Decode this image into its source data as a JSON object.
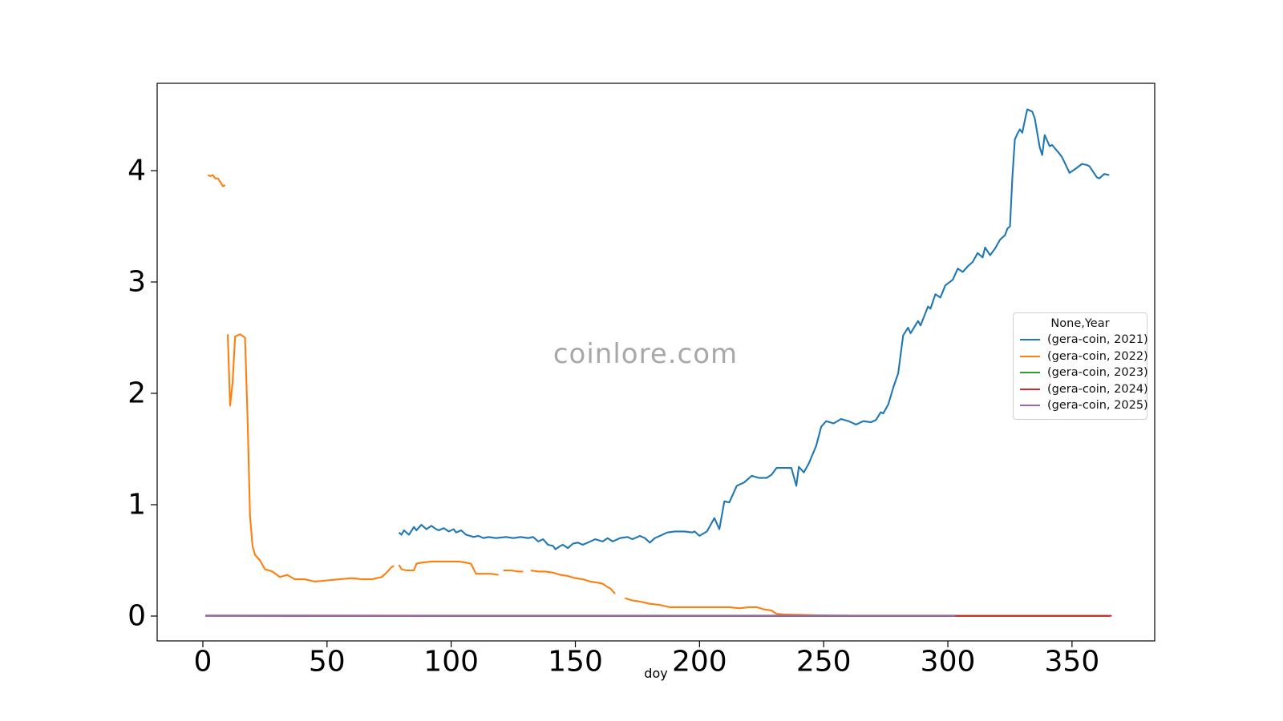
{
  "chart_data": {
    "type": "line",
    "title": "",
    "xlabel": "doy",
    "ylabel": "",
    "watermark": "coinlore.com",
    "xlim": [
      -18.4,
      383.3
    ],
    "ylim": [
      -0.223,
      4.784
    ],
    "xticks": [
      0,
      50,
      100,
      150,
      200,
      250,
      300,
      350
    ],
    "yticks": [
      0,
      1,
      2,
      3,
      4
    ],
    "grid": false,
    "axis_color": "#000000",
    "background_color": "#ffffff",
    "watermark_color": "#a8a8a8",
    "legend": {
      "title": "None,Year",
      "position": "center-right",
      "entries": [
        {
          "label": "(gera-coin, 2021)",
          "color": "#1f77b4"
        },
        {
          "label": "(gera-coin, 2022)",
          "color": "#ff7f0e"
        },
        {
          "label": "(gera-coin, 2023)",
          "color": "#2ca02c"
        },
        {
          "label": "(gera-coin, 2024)",
          "color": "#d62728"
        },
        {
          "label": "(gera-coin, 2025)",
          "color": "#9467bd"
        }
      ]
    },
    "series": [
      {
        "name": "(gera-coin, 2021)",
        "year": 2021,
        "color": "#1f77b4",
        "segments": [
          [
            [
              79,
              0.75
            ],
            [
              80,
              0.73
            ],
            [
              81,
              0.77
            ],
            [
              83,
              0.73
            ],
            [
              85,
              0.8
            ],
            [
              86,
              0.77
            ],
            [
              88,
              0.82
            ],
            [
              90,
              0.78
            ],
            [
              92,
              0.81
            ],
            [
              94,
              0.78
            ],
            [
              95,
              0.77
            ],
            [
              97,
              0.79
            ],
            [
              99,
              0.76
            ],
            [
              101,
              0.78
            ],
            [
              102,
              0.75
            ],
            [
              104,
              0.77
            ],
            [
              106,
              0.73
            ],
            [
              109,
              0.71
            ],
            [
              111,
              0.72
            ],
            [
              113,
              0.7
            ],
            [
              115,
              0.71
            ],
            [
              118,
              0.7
            ],
            [
              122,
              0.71
            ],
            [
              125,
              0.7
            ],
            [
              128,
              0.71
            ],
            [
              131,
              0.7
            ],
            [
              133,
              0.71
            ],
            [
              135,
              0.67
            ],
            [
              137,
              0.69
            ],
            [
              139,
              0.64
            ],
            [
              141,
              0.63
            ],
            [
              142,
              0.6
            ],
            [
              144,
              0.63
            ],
            [
              145,
              0.64
            ],
            [
              147,
              0.61
            ],
            [
              149,
              0.65
            ],
            [
              151,
              0.66
            ],
            [
              153,
              0.64
            ],
            [
              155,
              0.66
            ],
            [
              158,
              0.69
            ],
            [
              161,
              0.67
            ],
            [
              163,
              0.7
            ],
            [
              165,
              0.67
            ],
            [
              168,
              0.7
            ],
            [
              171,
              0.71
            ],
            [
              173,
              0.69
            ],
            [
              176,
              0.72
            ],
            [
              178,
              0.7
            ],
            [
              180,
              0.66
            ],
            [
              182,
              0.7
            ],
            [
              184,
              0.72
            ],
            [
              187,
              0.75
            ],
            [
              190,
              0.76
            ],
            [
              194,
              0.76
            ],
            [
              197,
              0.75
            ],
            [
              198,
              0.76
            ],
            [
              200,
              0.72
            ],
            [
              203,
              0.76
            ],
            [
              205,
              0.84
            ],
            [
              206,
              0.88
            ],
            [
              208,
              0.78
            ],
            [
              210,
              1.03
            ],
            [
              212,
              1.02
            ],
            [
              215,
              1.17
            ],
            [
              218,
              1.2
            ],
            [
              221,
              1.26
            ],
            [
              224,
              1.24
            ],
            [
              227,
              1.24
            ],
            [
              229,
              1.27
            ],
            [
              231,
              1.33
            ],
            [
              234,
              1.33
            ],
            [
              237,
              1.33
            ],
            [
              239,
              1.17
            ],
            [
              240,
              1.34
            ],
            [
              242,
              1.29
            ],
            [
              244,
              1.37
            ],
            [
              247,
              1.53
            ],
            [
              249,
              1.7
            ],
            [
              251,
              1.75
            ],
            [
              254,
              1.73
            ],
            [
              257,
              1.77
            ],
            [
              260,
              1.75
            ],
            [
              263,
              1.72
            ],
            [
              266,
              1.75
            ],
            [
              269,
              1.74
            ],
            [
              271,
              1.76
            ],
            [
              273,
              1.83
            ],
            [
              274,
              1.82
            ],
            [
              276,
              1.9
            ],
            [
              278,
              2.05
            ],
            [
              280,
              2.18
            ],
            [
              282,
              2.52
            ],
            [
              284,
              2.59
            ],
            [
              285,
              2.54
            ],
            [
              288,
              2.65
            ],
            [
              289,
              2.61
            ],
            [
              292,
              2.78
            ],
            [
              293,
              2.76
            ],
            [
              295,
              2.89
            ],
            [
              297,
              2.86
            ],
            [
              299,
              2.97
            ],
            [
              302,
              3.02
            ],
            [
              304,
              3.12
            ],
            [
              306,
              3.09
            ],
            [
              308,
              3.14
            ],
            [
              310,
              3.18
            ],
            [
              312,
              3.26
            ],
            [
              314,
              3.22
            ],
            [
              315,
              3.31
            ],
            [
              317,
              3.24
            ],
            [
              319,
              3.3
            ],
            [
              321,
              3.38
            ],
            [
              323,
              3.42
            ],
            [
              324,
              3.48
            ],
            [
              325,
              3.5
            ],
            [
              326,
              3.95
            ],
            [
              327,
              4.28
            ],
            [
              328,
              4.33
            ],
            [
              329,
              4.37
            ],
            [
              330,
              4.34
            ],
            [
              331,
              4.45
            ],
            [
              332,
              4.55
            ],
            [
              334,
              4.53
            ],
            [
              335,
              4.47
            ],
            [
              337,
              4.21
            ],
            [
              338,
              4.14
            ],
            [
              339,
              4.32
            ],
            [
              341,
              4.22
            ],
            [
              342,
              4.23
            ],
            [
              345,
              4.15
            ],
            [
              346,
              4.12
            ],
            [
              349,
              3.98
            ],
            [
              351,
              4.01
            ],
            [
              354,
              4.06
            ],
            [
              356,
              4.05
            ],
            [
              357,
              4.04
            ],
            [
              360,
              3.94
            ],
            [
              361,
              3.93
            ],
            [
              363,
              3.97
            ],
            [
              365,
              3.96
            ]
          ]
        ]
      },
      {
        "name": "(gera-coin, 2022)",
        "year": 2022,
        "color": "#ff7f0e",
        "segments": [
          [
            [
              2,
              3.96
            ],
            [
              3,
              3.95
            ],
            [
              4,
              3.96
            ],
            [
              5,
              3.93
            ],
            [
              6,
              3.93
            ],
            [
              7,
              3.9
            ],
            [
              8,
              3.86
            ],
            [
              9,
              3.87
            ]
          ],
          [
            [
              10,
              2.53
            ],
            [
              11,
              1.89
            ],
            [
              12,
              2.1
            ],
            [
              13,
              2.51
            ],
            [
              15,
              2.53
            ],
            [
              17,
              2.5
            ],
            [
              18,
              1.78
            ],
            [
              19,
              0.9
            ],
            [
              20,
              0.63
            ],
            [
              21,
              0.55
            ],
            [
              23,
              0.5
            ],
            [
              25,
              0.42
            ],
            [
              28,
              0.4
            ],
            [
              31,
              0.35
            ],
            [
              34,
              0.37
            ],
            [
              37,
              0.33
            ],
            [
              41,
              0.33
            ],
            [
              45,
              0.31
            ],
            [
              50,
              0.32
            ],
            [
              55,
              0.33
            ],
            [
              60,
              0.34
            ],
            [
              64,
              0.33
            ],
            [
              68,
              0.33
            ],
            [
              72,
              0.35
            ],
            [
              74,
              0.39
            ],
            [
              76,
              0.44
            ],
            [
              77,
              0.45
            ]
          ],
          [
            [
              79,
              0.46
            ],
            [
              80,
              0.42
            ],
            [
              82,
              0.41
            ],
            [
              85,
              0.41
            ],
            [
              86,
              0.47
            ],
            [
              88,
              0.48
            ],
            [
              92,
              0.49
            ],
            [
              96,
              0.49
            ],
            [
              100,
              0.49
            ],
            [
              103,
              0.49
            ],
            [
              106,
              0.48
            ],
            [
              108,
              0.47
            ],
            [
              110,
              0.38
            ],
            [
              113,
              0.38
            ],
            [
              116,
              0.38
            ],
            [
              119,
              0.37
            ]
          ],
          [
            [
              121,
              0.41
            ],
            [
              124,
              0.41
            ],
            [
              127,
              0.4
            ],
            [
              129,
              0.4
            ]
          ],
          [
            [
              132,
              0.41
            ],
            [
              135,
              0.4
            ],
            [
              138,
              0.4
            ],
            [
              141,
              0.39
            ],
            [
              144,
              0.37
            ],
            [
              147,
              0.36
            ],
            [
              150,
              0.34
            ],
            [
              153,
              0.33
            ],
            [
              156,
              0.31
            ],
            [
              159,
              0.3
            ],
            [
              161,
              0.29
            ],
            [
              163,
              0.26
            ],
            [
              164,
              0.25
            ],
            [
              166,
              0.2
            ]
          ],
          [
            [
              170,
              0.16
            ],
            [
              173,
              0.14
            ],
            [
              176,
              0.13
            ],
            [
              180,
              0.11
            ],
            [
              184,
              0.1
            ],
            [
              188,
              0.08
            ],
            [
              192,
              0.08
            ],
            [
              196,
              0.08
            ],
            [
              200,
              0.08
            ],
            [
              204,
              0.08
            ],
            [
              208,
              0.08
            ],
            [
              212,
              0.08
            ],
            [
              216,
              0.07
            ],
            [
              220,
              0.08
            ],
            [
              223,
              0.08
            ],
            [
              226,
              0.06
            ],
            [
              229,
              0.05
            ],
            [
              231,
              0.02
            ],
            [
              234,
              0.015
            ],
            [
              238,
              0.012
            ],
            [
              242,
              0.01
            ],
            [
              246,
              0.008
            ],
            [
              250,
              0.006
            ],
            [
              255,
              0.005
            ],
            [
              260,
              0.004
            ]
          ]
        ]
      },
      {
        "name": "(gera-coin, 2023)",
        "year": 2023,
        "color": "#2ca02c",
        "segments": [
          [
            [
              1,
              0.002
            ],
            [
              100,
              0.001
            ],
            [
              200,
              0.001
            ],
            [
              300,
              0.001
            ],
            [
              365,
              0.001
            ]
          ]
        ]
      },
      {
        "name": "(gera-coin, 2024)",
        "year": 2024,
        "color": "#d62728",
        "segments": [
          [
            [
              1,
              0.003
            ],
            [
              100,
              0.002
            ],
            [
              200,
              0.002
            ],
            [
              300,
              0.002
            ],
            [
              366,
              0.002
            ]
          ]
        ]
      },
      {
        "name": "(gera-coin, 2025)",
        "year": 2025,
        "color": "#9467bd",
        "segments": [
          [
            [
              1,
              0.005
            ],
            [
              100,
              0.004
            ],
            [
              200,
              0.004
            ],
            [
              303,
              0.004
            ]
          ]
        ]
      }
    ]
  }
}
